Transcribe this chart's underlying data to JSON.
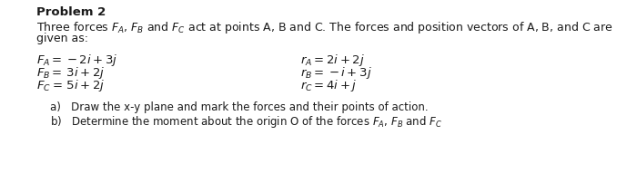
{
  "title": "Problem 2",
  "intro_line1": "Three forces $\\mathit{F}_A$, $\\mathit{F}_B$ and $\\mathit{F}_C$ act at points A, B and C. The forces and position vectors of A, B, and C are",
  "intro_line2": "given as:",
  "force_lines": [
    "$\\mathit{F}_A = -2i+3j$",
    "$\\mathit{F}_B =\\, 3i+2j$",
    "$\\mathit{F}_C =\\, 5i+2j$"
  ],
  "position_lines": [
    "$r_A = 2i+2j$",
    "$r_B = -i+3j$",
    "$r_C = 4i + j$"
  ],
  "qa": [
    "a)   Draw the x-y plane and mark the forces and their points of action.",
    "b)   Determine the moment about the origin O of the forces $\\mathit{F}_A$, $\\mathit{F}_B$ and $\\mathit{F}_C$"
  ],
  "bg_color": "#ffffff",
  "text_color": "#1a1a1a",
  "title_fontsize": 9.5,
  "body_fontsize": 9.0,
  "eq_fontsize": 9.5
}
